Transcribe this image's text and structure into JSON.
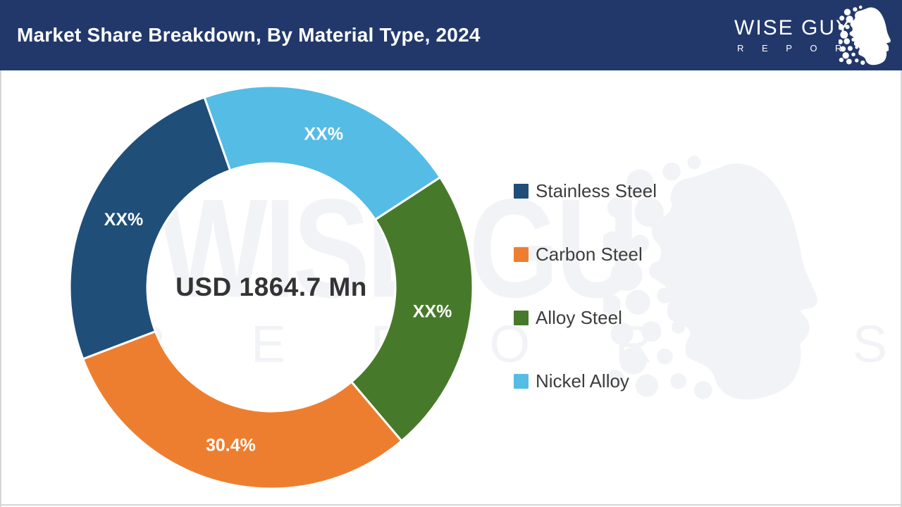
{
  "header": {
    "title": "Market Share Breakdown, By Material Type, 2024",
    "logo": {
      "line1": "WISE GUY",
      "line2": "R E P O R T S"
    }
  },
  "watermark": {
    "line1": "WISE GUY",
    "line2": "R E P O R T S"
  },
  "chart_data": {
    "type": "donut",
    "title": "Market Share Breakdown, By Material Type, 2024",
    "center_label": "USD 1864.7 Mn",
    "legend_position": "right",
    "start_angle_deg": -19.4,
    "rotation": "clockwise",
    "series": [
      {
        "name": "Stainless Steel",
        "value_pct": 25.4,
        "display_label": "XX%",
        "color": "#1F4E79"
      },
      {
        "name": "Carbon Steel",
        "value_pct": 30.4,
        "display_label": "30.4%",
        "color": "#EE7E2F"
      },
      {
        "name": "Alloy Steel",
        "value_pct": 23.0,
        "display_label": "XX%",
        "color": "#467A2A"
      },
      {
        "name": "Nickel Alloy",
        "value_pct": 21.2,
        "display_label": "XX%",
        "color": "#55BCE6"
      }
    ]
  },
  "colors": {
    "header_bg": "#22386B",
    "title_text": "#FFFFFF",
    "center_text": "#333333",
    "legend_text": "#3D3D3D",
    "slice_label_text": "#FFFFFF",
    "watermark": "#F2F3F6",
    "page_border": "#D6D6D6"
  }
}
